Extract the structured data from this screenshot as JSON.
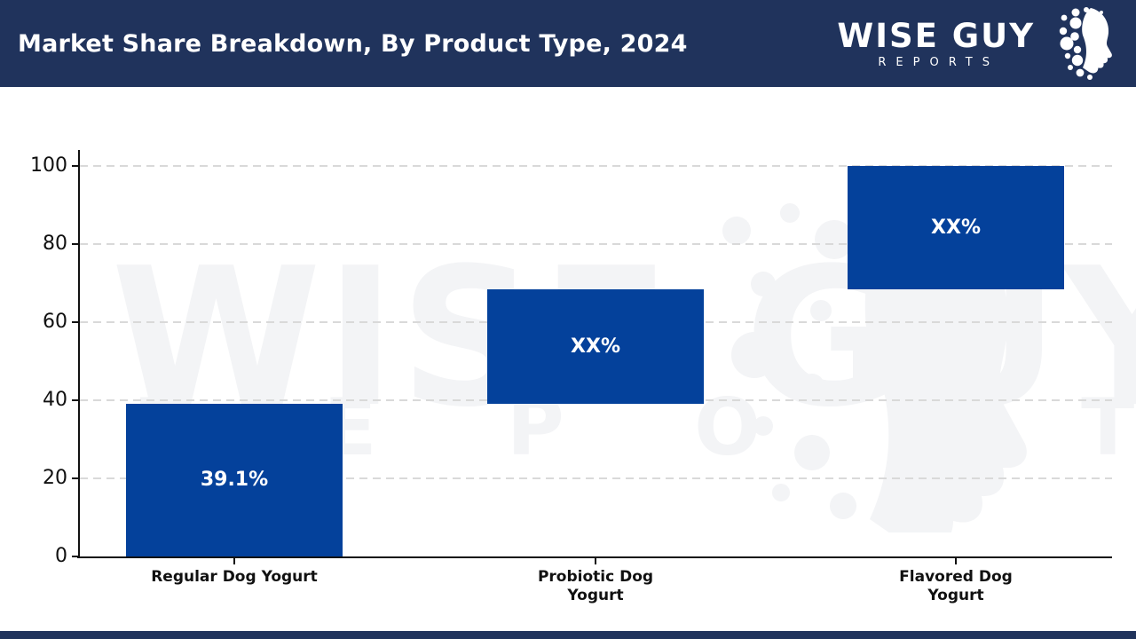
{
  "header": {
    "title": "Market Share Breakdown, By Product Type, 2024",
    "logo": {
      "line1": "WISE GUY",
      "line2": "REPORTS"
    }
  },
  "watermark": {
    "line1": "WISE GUY",
    "line2": "R E P O R T S"
  },
  "colors": {
    "header_bg": "#20335c",
    "footer_bg": "#20335c",
    "bar": "#04419b",
    "bar_label": "#ffffff",
    "grid": "#d9d9d9",
    "axis": "#111111",
    "watermark": "#f3f4f6"
  },
  "chart_data": {
    "type": "bar",
    "subtype": "waterfall",
    "title": "Market Share Breakdown, By Product Type, 2024",
    "categories": [
      [
        "Regular Dog Yogurt"
      ],
      [
        "Probiotic Dog",
        "Yogurt"
      ],
      [
        "Flavored Dog",
        "Yogurt"
      ]
    ],
    "series": [
      {
        "name": "Regular Dog Yogurt",
        "start": 0,
        "end": 39.1,
        "label": "39.1%"
      },
      {
        "name": "Probiotic Dog Yogurt",
        "start": 39.1,
        "end": 68.4,
        "label": "XX%"
      },
      {
        "name": "Flavored Dog Yogurt",
        "start": 68.4,
        "end": 100,
        "label": "XX%"
      }
    ],
    "ylabel": "",
    "xlabel": "",
    "ylim": [
      0,
      104
    ],
    "yticks": [
      0,
      20,
      40,
      60,
      80,
      100
    ],
    "grid": "horizontal-dashed",
    "legend": "none"
  }
}
